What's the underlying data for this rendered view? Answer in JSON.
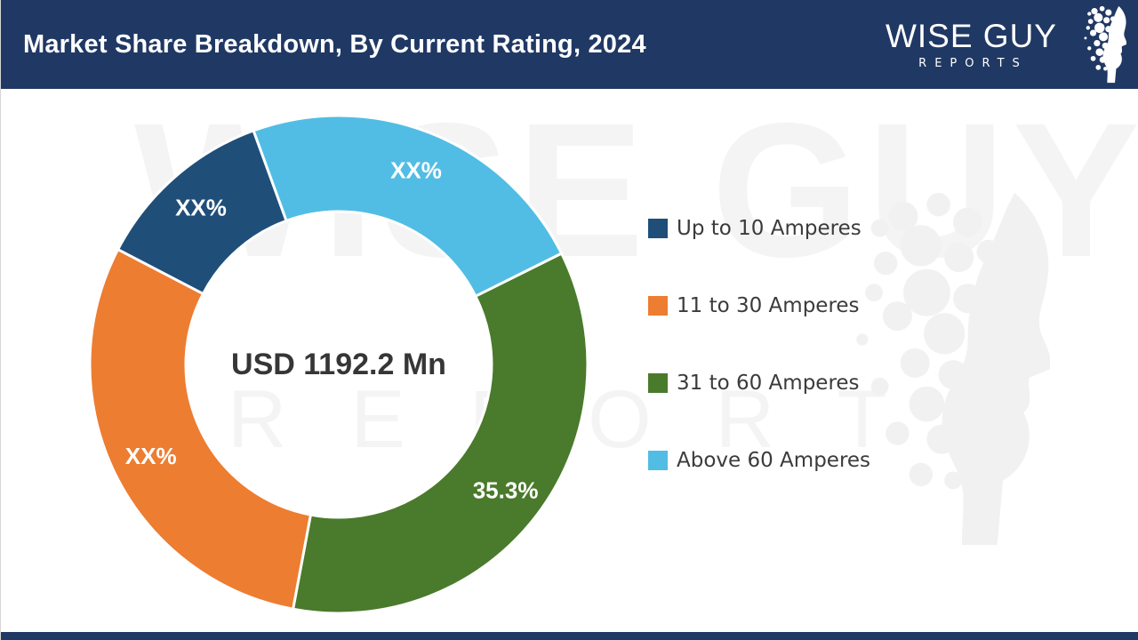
{
  "header": {
    "title": "Market Share Breakdown, By Current Rating, 2024",
    "bg_color": "#203864",
    "logo": {
      "line1": "WISE GUY",
      "line2": "REPORTS"
    }
  },
  "watermark": {
    "line1": "WISE GUY",
    "line2": "REPORTS"
  },
  "chart_data": {
    "type": "donut",
    "title": "Market Share Breakdown, By Current Rating, 2024",
    "center_label": "USD 1192.2 Mn",
    "start_angle_deg_clockwise_from_top": -62.5,
    "outer_radius": 280,
    "inner_radius": 172,
    "label_radius": 235,
    "slices": [
      {
        "name": "Up to 10 Amperes",
        "pct": 11.8,
        "display": "XX%",
        "color": "#1f4e79"
      },
      {
        "name": "Above 60 Amperes",
        "pct": 23.2,
        "display": "XX%",
        "color": "#52bde4"
      },
      {
        "name": "31 to 60 Amperes",
        "pct": 35.3,
        "display": "35.3%",
        "color": "#4a7a2b"
      },
      {
        "name": "11 to 30 Amperes",
        "pct": 29.7,
        "display": "XX%",
        "color": "#ed7d31"
      }
    ],
    "legend_order": [
      "Up to 10 Amperes",
      "11 to 30 Amperes",
      "31 to 60 Amperes",
      "Above 60 Amperes"
    ]
  }
}
